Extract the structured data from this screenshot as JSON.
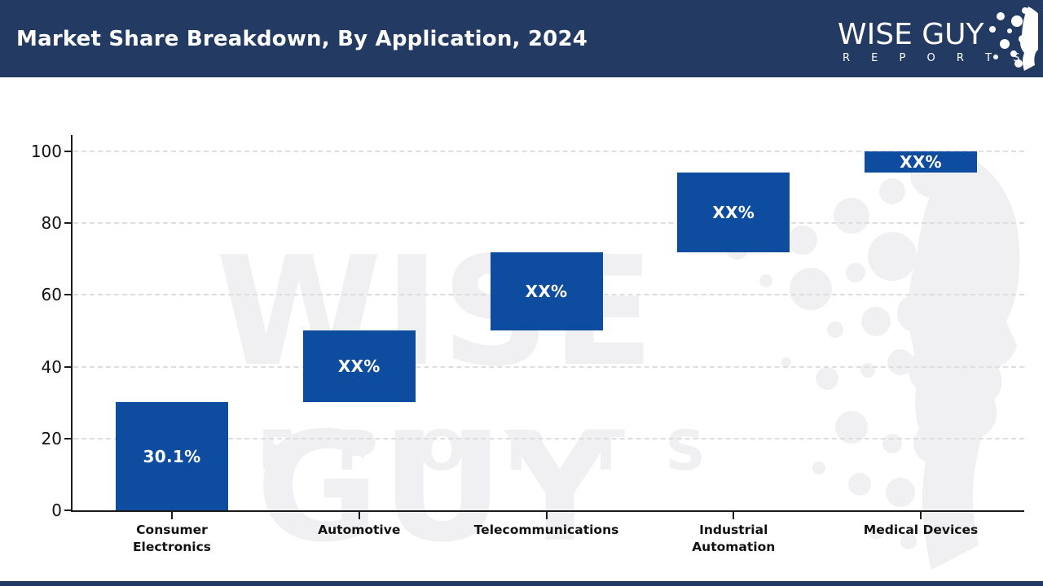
{
  "header": {
    "title": "Market Share Breakdown, By Application, 2024",
    "bg_color": "#233a63",
    "logo": {
      "line1": "WISE GUY",
      "line2": "R E P O R T S"
    }
  },
  "watermark": {
    "line1": "WISE GUY",
    "line2": "REPORTS"
  },
  "chart_data": {
    "type": "bar",
    "variant": "waterfall",
    "title": "Market Share Breakdown, By Application, 2024",
    "categories": [
      "Consumer Electronics",
      "Automotive",
      "Telecommunications",
      "Industrial Automation",
      "Medical Devices"
    ],
    "bars": [
      {
        "category": "Consumer\nElectronics",
        "start": 0,
        "end": 30.1,
        "value": 30.1,
        "label": "30.1%"
      },
      {
        "category": "Automotive",
        "start": 30.1,
        "end": 50.1,
        "value": 20.0,
        "label": "XX%"
      },
      {
        "category": "Telecommunications",
        "start": 50.1,
        "end": 71.9,
        "value": 21.8,
        "label": "XX%"
      },
      {
        "category": "Industrial\nAutomation",
        "start": 71.9,
        "end": 94.1,
        "value": 22.2,
        "label": "XX%"
      },
      {
        "category": "Medical Devices",
        "start": 94.1,
        "end": 100,
        "value": 5.9,
        "label": "XX%"
      }
    ],
    "yticks": [
      0,
      20,
      40,
      60,
      80,
      100
    ],
    "ylim": [
      0,
      105
    ],
    "xlabel": "",
    "ylabel": "",
    "grid": "horizontal-dashed",
    "legend": "none",
    "bar_color": "#0d4c9e",
    "bar_label_color": "#ffffff",
    "axis_color": "#1a1a1a"
  },
  "footer": {
    "bg_color": "#233a63"
  }
}
